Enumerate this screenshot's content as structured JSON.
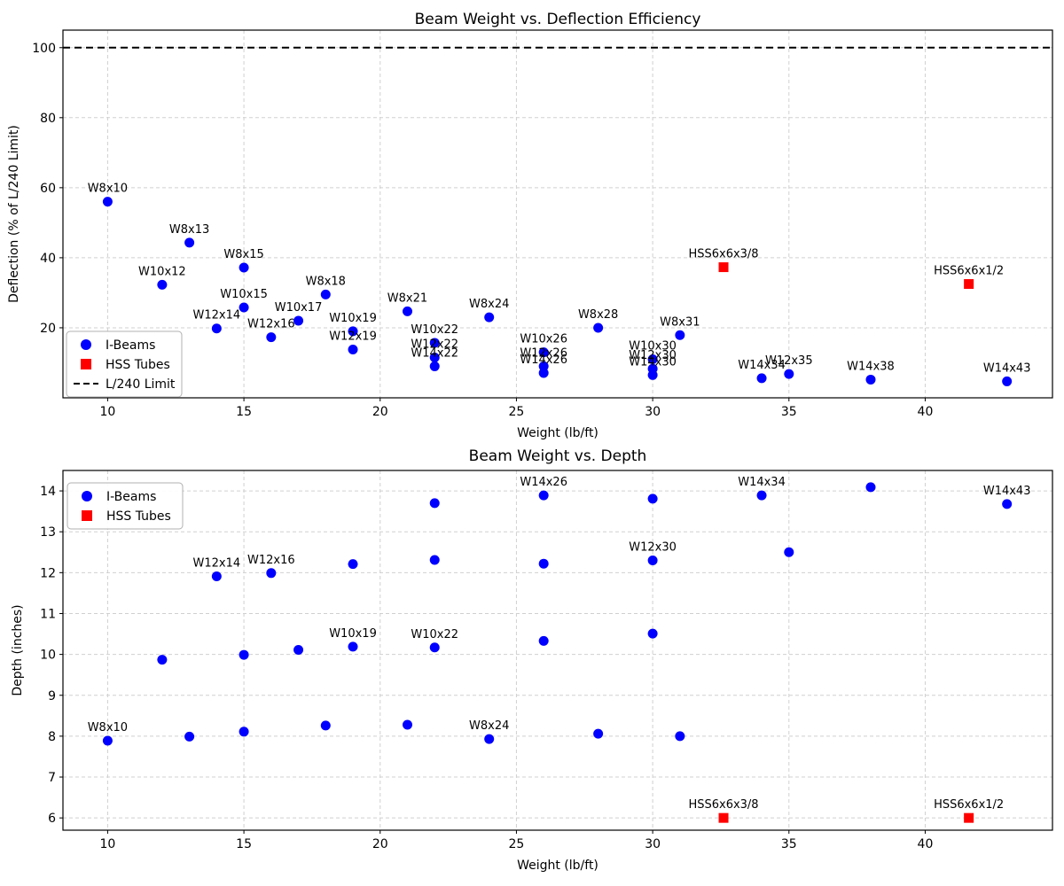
{
  "figure": {
    "background": "#ffffff",
    "accent_blue": "#0000ff",
    "accent_red": "#ff0000",
    "grid_color": "#d0d0d0",
    "limit_line_color": "#000000"
  },
  "chart_data": [
    {
      "type": "scatter",
      "title": "Beam Weight vs. Deflection Efficiency",
      "xlabel": "Weight (lb/ft)",
      "ylabel": "Deflection (% of L/240 Limit)",
      "xlim": [
        8.36,
        44.67
      ],
      "ylim": [
        0,
        105
      ],
      "xticks": [
        10,
        15,
        20,
        25,
        30,
        35,
        40
      ],
      "yticks": [
        20,
        40,
        60,
        80,
        100
      ],
      "grid": true,
      "legend_position": "lower-left",
      "legend": [
        {
          "label": "I-Beams",
          "marker": "circle",
          "color": "#0000ff"
        },
        {
          "label": "HSS Tubes",
          "marker": "square",
          "color": "#ff0000"
        },
        {
          "label": "L/240 Limit",
          "marker": "dashed-line",
          "color": "#000000"
        }
      ],
      "hline": {
        "y": 100,
        "style": "dashed",
        "color": "#000000"
      },
      "series": [
        {
          "name": "I-Beams",
          "marker": "circle",
          "color": "#0000ff",
          "points": [
            {
              "label": "W8x10",
              "x": 10,
              "y": 56,
              "labeled": true
            },
            {
              "label": "W10x12",
              "x": 12,
              "y": 32.3,
              "labeled": true
            },
            {
              "label": "W8x13",
              "x": 13,
              "y": 44.3,
              "labeled": true
            },
            {
              "label": "W12x14",
              "x": 14,
              "y": 19.8,
              "labeled": true
            },
            {
              "label": "W8x15",
              "x": 15,
              "y": 37.2,
              "labeled": true
            },
            {
              "label": "W10x15",
              "x": 15,
              "y": 25.8,
              "labeled": true
            },
            {
              "label": "W12x16",
              "x": 16,
              "y": 17.3,
              "labeled": true
            },
            {
              "label": "W10x17",
              "x": 17,
              "y": 22,
              "labeled": true
            },
            {
              "label": "W8x18",
              "x": 18,
              "y": 29.5,
              "labeled": true
            },
            {
              "label": "W10x19",
              "x": 19,
              "y": 19,
              "labeled": true
            },
            {
              "label": "W12x19",
              "x": 19,
              "y": 13.8,
              "labeled": true
            },
            {
              "label": "W8x21",
              "x": 21,
              "y": 24.7,
              "labeled": true
            },
            {
              "label": "W10x22",
              "x": 22,
              "y": 15.7,
              "labeled": true
            },
            {
              "label": "W12x22",
              "x": 22,
              "y": 11.5,
              "labeled": true
            },
            {
              "label": "W14x22",
              "x": 22,
              "y": 9,
              "labeled": true
            },
            {
              "label": "W8x24",
              "x": 24,
              "y": 23,
              "labeled": true
            },
            {
              "label": "W10x26",
              "x": 26,
              "y": 13,
              "labeled": true
            },
            {
              "label": "W12x26",
              "x": 26,
              "y": 9,
              "labeled": true
            },
            {
              "label": "W14x26",
              "x": 26,
              "y": 7.1,
              "labeled": true
            },
            {
              "label": "W8x28",
              "x": 28,
              "y": 20,
              "labeled": true
            },
            {
              "label": "W10x30",
              "x": 30,
              "y": 11,
              "labeled": true
            },
            {
              "label": "W12x30",
              "x": 30,
              "y": 8.3,
              "labeled": true
            },
            {
              "label": "W14x30",
              "x": 30,
              "y": 6.5,
              "labeled": true
            },
            {
              "label": "W8x31",
              "x": 31,
              "y": 17.9,
              "labeled": true
            },
            {
              "label": "W14x34",
              "x": 34,
              "y": 5.6,
              "labeled": true
            },
            {
              "label": "W12x35",
              "x": 35,
              "y": 6.8,
              "labeled": true
            },
            {
              "label": "W14x38",
              "x": 38,
              "y": 5.2,
              "labeled": true
            },
            {
              "label": "W14x43",
              "x": 43,
              "y": 4.7,
              "labeled": true
            }
          ]
        },
        {
          "name": "HSS Tubes",
          "marker": "square",
          "color": "#ff0000",
          "points": [
            {
              "label": "HSS6x6x3/8",
              "x": 32.6,
              "y": 37.3,
              "labeled": true
            },
            {
              "label": "HSS6x6x1/2",
              "x": 41.6,
              "y": 32.5,
              "labeled": true
            }
          ]
        }
      ]
    },
    {
      "type": "scatter",
      "title": "Beam Weight vs. Depth",
      "xlabel": "Weight (lb/ft)",
      "ylabel": "Depth (inches)",
      "xlim": [
        8.36,
        44.67
      ],
      "ylim": [
        5.7,
        14.5
      ],
      "xticks": [
        10,
        15,
        20,
        25,
        30,
        35,
        40
      ],
      "yticks": [
        6,
        7,
        8,
        9,
        10,
        11,
        12,
        13,
        14
      ],
      "grid": true,
      "legend_position": "upper-left",
      "legend": [
        {
          "label": "I-Beams",
          "marker": "circle",
          "color": "#0000ff"
        },
        {
          "label": "HSS Tubes",
          "marker": "square",
          "color": "#ff0000"
        }
      ],
      "hline": null,
      "series": [
        {
          "name": "I-Beams",
          "marker": "circle",
          "color": "#0000ff",
          "points": [
            {
              "label": "W8x10",
              "x": 10,
              "y": 7.89,
              "labeled": true
            },
            {
              "label": "W10x12",
              "x": 12,
              "y": 9.87,
              "labeled": false
            },
            {
              "label": "W8x13",
              "x": 13,
              "y": 7.99,
              "labeled": false
            },
            {
              "label": "W12x14",
              "x": 14,
              "y": 11.91,
              "labeled": true
            },
            {
              "label": "W8x15",
              "x": 15,
              "y": 8.11,
              "labeled": false
            },
            {
              "label": "W10x15",
              "x": 15,
              "y": 9.99,
              "labeled": false
            },
            {
              "label": "W12x16",
              "x": 16,
              "y": 11.99,
              "labeled": true
            },
            {
              "label": "W10x17",
              "x": 17,
              "y": 10.11,
              "labeled": false
            },
            {
              "label": "W8x18",
              "x": 18,
              "y": 8.26,
              "labeled": false
            },
            {
              "label": "W10x19",
              "x": 19,
              "y": 10.19,
              "labeled": true
            },
            {
              "label": "W12x19",
              "x": 19,
              "y": 12.21,
              "labeled": false
            },
            {
              "label": "W8x21",
              "x": 21,
              "y": 8.28,
              "labeled": false
            },
            {
              "label": "W10x22",
              "x": 22,
              "y": 10.17,
              "labeled": true
            },
            {
              "label": "W12x22",
              "x": 22,
              "y": 12.31,
              "labeled": false
            },
            {
              "label": "W14x22",
              "x": 22,
              "y": 13.7,
              "labeled": false
            },
            {
              "label": "W8x24",
              "x": 24,
              "y": 7.93,
              "labeled": true
            },
            {
              "label": "W10x26",
              "x": 26,
              "y": 10.33,
              "labeled": false
            },
            {
              "label": "W12x26",
              "x": 26,
              "y": 12.22,
              "labeled": false
            },
            {
              "label": "W14x26",
              "x": 26,
              "y": 13.89,
              "labeled": true
            },
            {
              "label": "W8x28",
              "x": 28,
              "y": 8.06,
              "labeled": false
            },
            {
              "label": "W10x30",
              "x": 30,
              "y": 10.51,
              "labeled": false
            },
            {
              "label": "W12x30",
              "x": 30,
              "y": 12.3,
              "labeled": true
            },
            {
              "label": "W14x30",
              "x": 30,
              "y": 13.81,
              "labeled": false
            },
            {
              "label": "W8x31",
              "x": 31,
              "y": 8.0,
              "labeled": false
            },
            {
              "label": "W14x34",
              "x": 34,
              "y": 13.89,
              "labeled": true
            },
            {
              "label": "W12x35",
              "x": 35,
              "y": 12.5,
              "labeled": false
            },
            {
              "label": "W14x38",
              "x": 38,
              "y": 14.09,
              "labeled": false
            },
            {
              "label": "W14x43",
              "x": 43,
              "y": 13.68,
              "labeled": true
            }
          ]
        },
        {
          "name": "HSS Tubes",
          "marker": "square",
          "color": "#ff0000",
          "points": [
            {
              "label": "HSS6x6x3/8",
              "x": 32.6,
              "y": 6.0,
              "labeled": true
            },
            {
              "label": "HSS6x6x1/2",
              "x": 41.6,
              "y": 6.0,
              "labeled": true
            }
          ]
        }
      ]
    }
  ]
}
